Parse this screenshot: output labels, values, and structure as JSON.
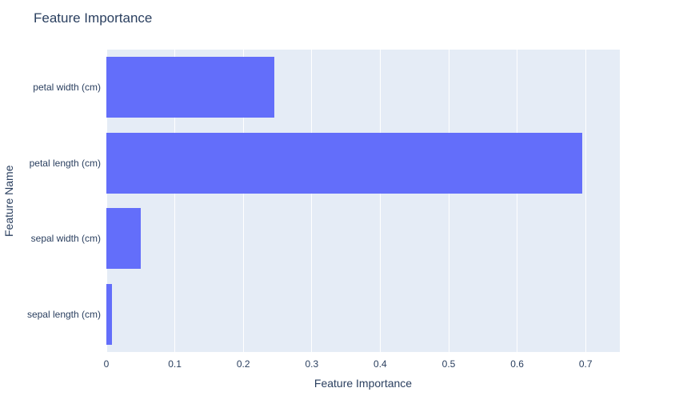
{
  "title": "Feature Importance",
  "chart_data": {
    "type": "bar",
    "orientation": "horizontal",
    "title": "Feature Importance",
    "xlabel": "Feature Importance",
    "ylabel": "Feature Name",
    "categories": [
      "petal width (cm)",
      "petal length (cm)",
      "sepal width (cm)",
      "sepal length (cm)"
    ],
    "values": [
      0.245,
      0.695,
      0.05,
      0.008
    ],
    "xlim": [
      0,
      0.75
    ],
    "xticks": [
      0,
      0.1,
      0.2,
      0.3,
      0.4,
      0.5,
      0.6,
      0.7
    ],
    "grid": true,
    "legend": "none",
    "colors": {
      "bar": "#636efa",
      "plot_background": "#e5ecf6",
      "gridline": "#ffffff",
      "text": "#2a3f5f"
    }
  }
}
